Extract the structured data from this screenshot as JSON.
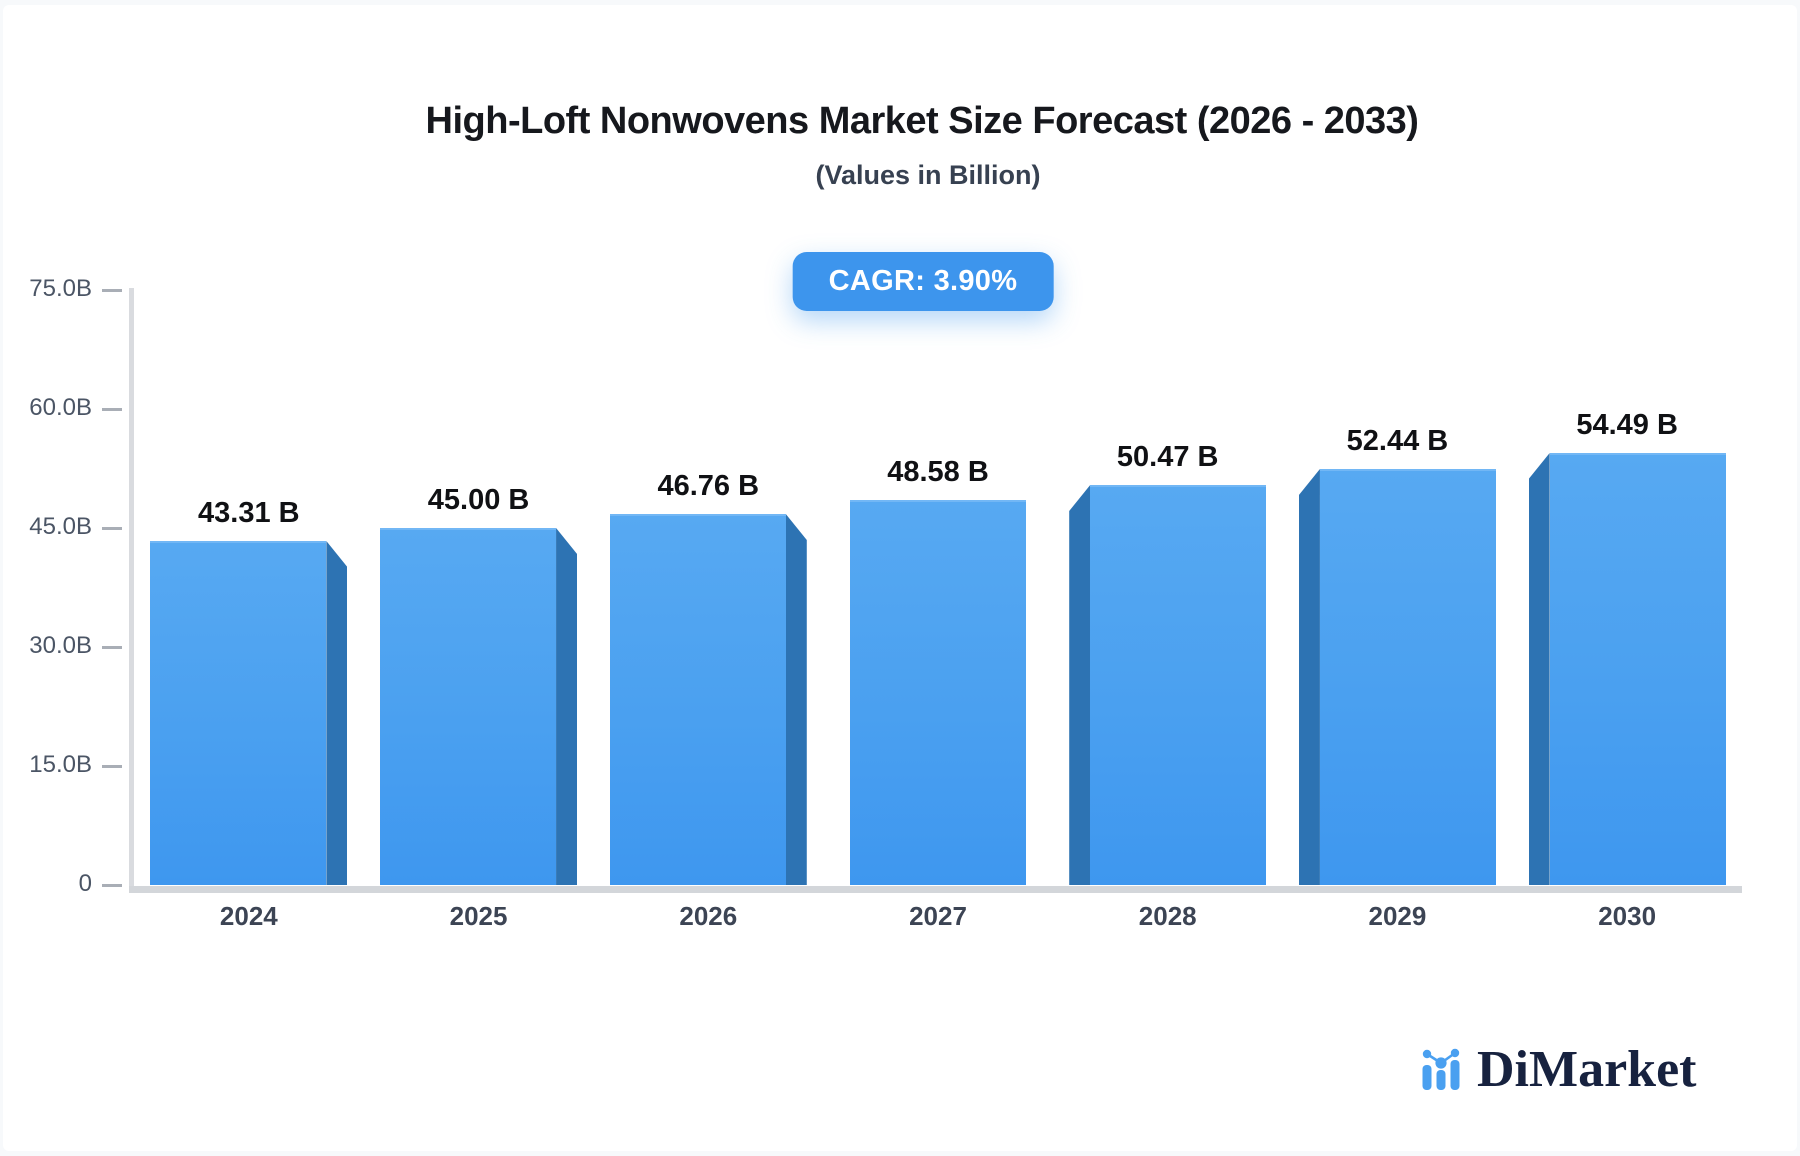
{
  "header": {
    "title": "High-Loft Nonwovens Market Size Forecast (2026 - 2033)",
    "subtitle": "(Values in Billion)",
    "cagr_badge": "CAGR: 3.90%"
  },
  "chart_data": {
    "type": "bar",
    "title": "High-Loft Nonwovens Market Size Forecast (2026 - 2033)",
    "subtitle": "(Values in Billion)",
    "xlabel": "",
    "ylabel": "",
    "categories": [
      "2024",
      "2025",
      "2026",
      "2027",
      "2028",
      "2029",
      "2030"
    ],
    "values": [
      43.31,
      45.0,
      46.76,
      48.58,
      50.47,
      52.44,
      54.49
    ],
    "value_labels": [
      "43.31 B",
      "45.00 B",
      "46.76 B",
      "48.58 B",
      "50.47 B",
      "52.44 B",
      "54.49 B"
    ],
    "ylim": [
      0,
      75
    ],
    "yticks": [
      {
        "value": 0,
        "label": "0"
      },
      {
        "value": 15,
        "label": "15.0B"
      },
      {
        "value": 30,
        "label": "30.0B"
      },
      {
        "value": 45,
        "label": "45.0B"
      },
      {
        "value": 60,
        "label": "60.0B"
      },
      {
        "value": 75,
        "label": "75.0B"
      }
    ],
    "grid": false,
    "legend": "none",
    "bar_style": "pseudo-3d"
  },
  "colors": {
    "bar_face_top": "#57a9f2",
    "bar_face_bottom": "#3e97ef",
    "bar_side": "#2d73b3",
    "badge_bg": "#3d95ed",
    "axis_gray": "#d3d6da",
    "logo_navy": "#17223f",
    "logo_blue": "#4aa0f0"
  },
  "logo": {
    "text": "DiMarket"
  }
}
